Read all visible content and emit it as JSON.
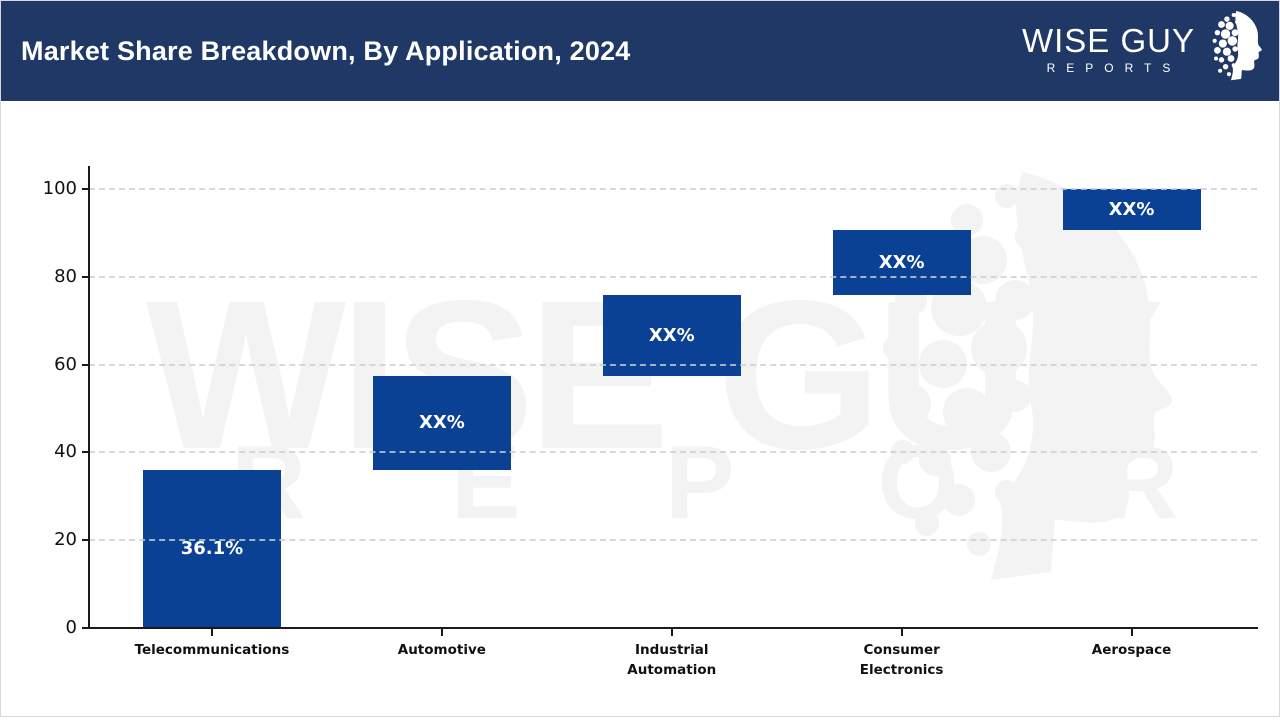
{
  "header": {
    "title": "Market Share Breakdown, By Application, 2024",
    "background_color": "#1f3865",
    "logo": {
      "line1": "WISE GUY",
      "line2": "REPORTS"
    }
  },
  "watermark": {
    "line1": "WISE GUY",
    "line2": "REPORTS"
  },
  "chart_data": {
    "type": "bar",
    "subtype": "waterfall",
    "title": "Market Share Breakdown, By Application, 2024",
    "categories": [
      "Telecommunications",
      "Automotive",
      "Industrial\nAutomation",
      "Consumer\nElectronics",
      "Aerospace"
    ],
    "segments": [
      {
        "category": "Telecommunications",
        "start": 0,
        "end": 36.1,
        "increment": 36.1,
        "label": "36.1%"
      },
      {
        "category": "Automotive",
        "start": 36.1,
        "end": 57.3,
        "increment": 21.2,
        "label": "XX%"
      },
      {
        "category": "Industrial Automation",
        "start": 57.3,
        "end": 75.9,
        "increment": 18.6,
        "label": "XX%"
      },
      {
        "category": "Consumer Electronics",
        "start": 75.9,
        "end": 90.6,
        "increment": 14.7,
        "label": "XX%"
      },
      {
        "category": "Aerospace",
        "start": 90.6,
        "end": 100,
        "increment": 9.4,
        "label": "XX%"
      }
    ],
    "yticks": [
      0,
      20,
      40,
      60,
      80,
      100
    ],
    "ylim": [
      0,
      100
    ],
    "grid": "horizontal dashed",
    "legend": "none",
    "bar_color": "#0a4194",
    "bar_label_color": "#ffffff",
    "axis_color": "#1a1a1a"
  }
}
